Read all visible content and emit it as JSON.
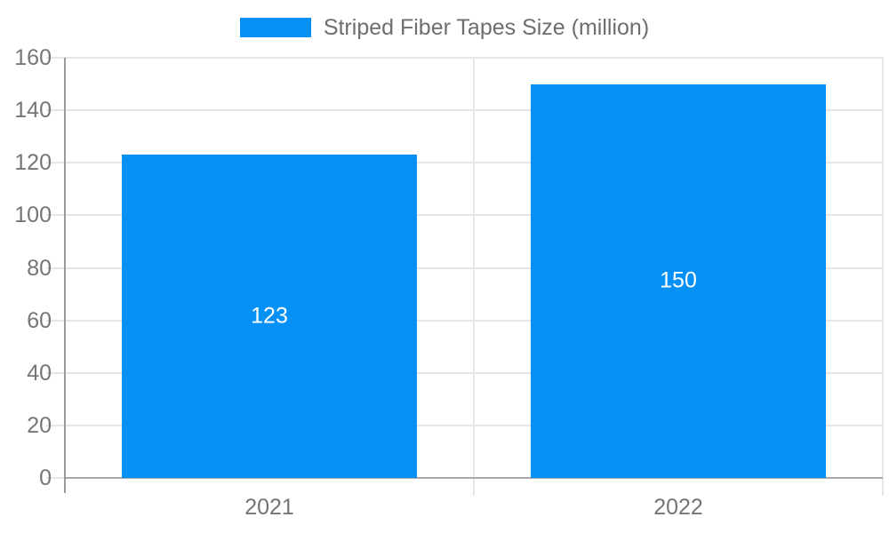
{
  "legend": {
    "label": "Striped Fiber Tapes Size (million)"
  },
  "chart_data": {
    "type": "bar",
    "title": "",
    "categories": [
      "2021",
      "2022"
    ],
    "series": [
      {
        "name": "Striped Fiber Tapes Size (million)",
        "values": [
          123,
          150
        ]
      }
    ],
    "data_labels": [
      "123",
      "150"
    ],
    "xlabel": "",
    "ylabel": "",
    "ylim": [
      0,
      160
    ],
    "yticks": [
      0,
      20,
      40,
      60,
      80,
      100,
      120,
      140,
      160
    ],
    "grid": true,
    "legend_position": "top-center",
    "colors": {
      "bar": "#0590f5",
      "grid": "#e6e6e6",
      "axis_line": "#999999",
      "baseline": "#a8a8a8",
      "tick_label": "#757575",
      "data_label": "#ffffff",
      "legend_text": "#6e6e6e"
    }
  }
}
